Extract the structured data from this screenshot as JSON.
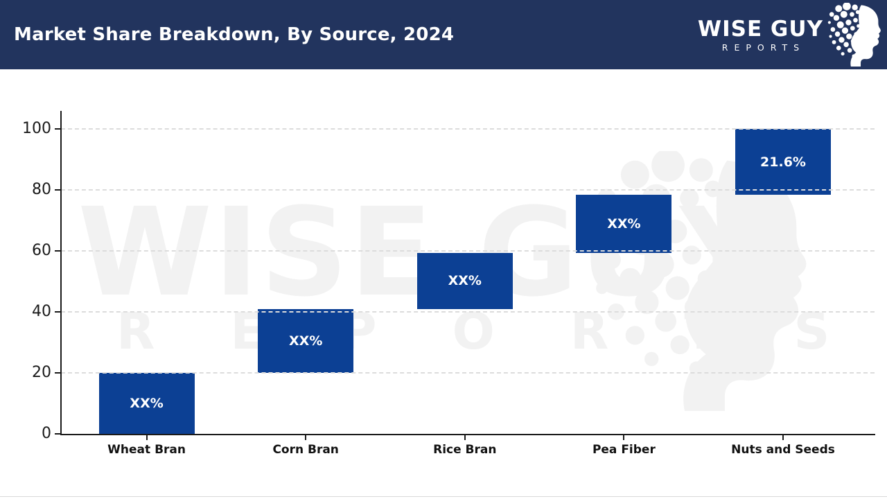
{
  "header": {
    "title": "Market Share Breakdown, By Source, 2024",
    "bg_color": "#22345e",
    "logo": {
      "line1": "WISE GUY",
      "line2": "REPORTS"
    }
  },
  "watermark": {
    "line1": "WISE GUY",
    "line2": "R E P O R T S"
  },
  "chart_data": {
    "type": "bar",
    "subtype": "waterfall",
    "title": "Market Share Breakdown, By Source, 2024",
    "categories": [
      "Wheat Bran",
      "Corn Bran",
      "Rice Bran",
      "Pea Fiber",
      "Nuts and Seeds"
    ],
    "segments": [
      [
        0,
        20
      ],
      [
        20,
        41
      ],
      [
        41,
        59.4
      ],
      [
        59.4,
        78.4
      ],
      [
        78.4,
        100
      ]
    ],
    "values": [
      20,
      21,
      18.4,
      19,
      21.6
    ],
    "bar_labels": [
      "XX%",
      "XX%",
      "XX%",
      "XX%",
      "21.6%"
    ],
    "bar_color": "#0c4094",
    "ylim": [
      0,
      100
    ],
    "yticks": [
      0,
      20,
      40,
      60,
      80,
      100
    ],
    "xlabel": "",
    "ylabel": "",
    "grid": "horizontal-dashed",
    "legend": "none"
  }
}
